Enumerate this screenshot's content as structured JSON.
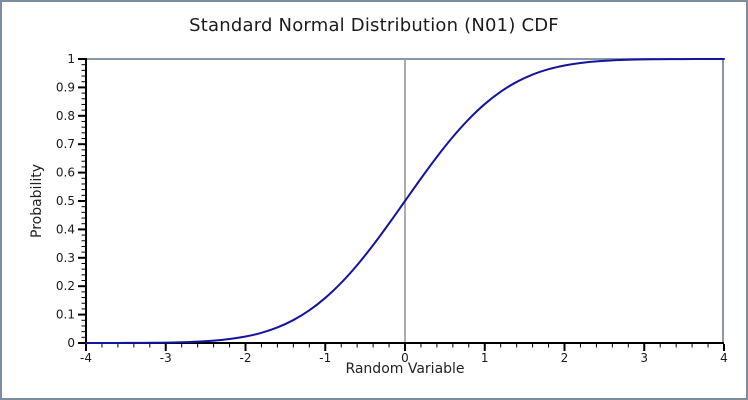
{
  "chart_data": {
    "type": "line",
    "title": "Standard Normal Distribution (N01) CDF",
    "xlabel": "Random Variable",
    "ylabel": "Probability",
    "xlim": [
      -4,
      4
    ],
    "ylim": [
      0,
      1
    ],
    "grid": "off",
    "legend": "none",
    "x_major_ticks": [
      -4,
      -3,
      -2,
      -1,
      0,
      1,
      2,
      3,
      4
    ],
    "x_major_tick_labels": [
      "-4",
      "-3",
      "-2",
      "-1",
      "0",
      "1",
      "2",
      "3",
      "4"
    ],
    "x_minor_tick_step": 0.2,
    "y_major_ticks": [
      0,
      0.1,
      0.2,
      0.3,
      0.4,
      0.5,
      0.6,
      0.7,
      0.8,
      0.9,
      1
    ],
    "y_major_tick_labels": [
      "0",
      "0.1",
      "0.2",
      "0.3",
      "0.4",
      "0.5",
      "0.6",
      "0.7",
      "0.8",
      "0.9",
      "1"
    ],
    "y_minor_tick_step": 0.02,
    "reference_lines": [
      {
        "orientation": "vertical",
        "x": 0
      },
      {
        "orientation": "horizontal",
        "y": 1
      }
    ],
    "series": [
      {
        "name": "standard-normal-cdf",
        "x": [
          -4,
          -3.8,
          -3.6,
          -3.4,
          -3.2,
          -3,
          -2.8,
          -2.6,
          -2.4,
          -2.2,
          -2,
          -1.8,
          -1.6,
          -1.4,
          -1.2,
          -1,
          -0.8,
          -0.6,
          -0.4,
          -0.2,
          0,
          0.2,
          0.4,
          0.6,
          0.8,
          1,
          1.2,
          1.4,
          1.6,
          1.8,
          2,
          2.2,
          2.4,
          2.6,
          2.8,
          3,
          3.2,
          3.4,
          3.6,
          3.8,
          4
        ],
        "y": [
          3e-05,
          7e-05,
          0.00016,
          0.00034,
          0.00069,
          0.00135,
          0.00256,
          0.00466,
          0.0082,
          0.0139,
          0.02275,
          0.03593,
          0.0548,
          0.08076,
          0.11507,
          0.15866,
          0.21186,
          0.27425,
          0.34458,
          0.42074,
          0.5,
          0.57926,
          0.65542,
          0.72575,
          0.78814,
          0.84134,
          0.88493,
          0.91924,
          0.9452,
          0.96407,
          0.97725,
          0.9861,
          0.9918,
          0.99534,
          0.99744,
          0.99865,
          0.99931,
          0.99966,
          0.99984,
          0.99993,
          0.99997
        ]
      }
    ]
  },
  "colors": {
    "curve": "#14149d",
    "axis": "#000000",
    "frame": "#8897ac",
    "reference_line": "#7f7f7f",
    "window_border": "#7d8da0",
    "text": "#1a1a1a",
    "background": "#ffffff"
  }
}
